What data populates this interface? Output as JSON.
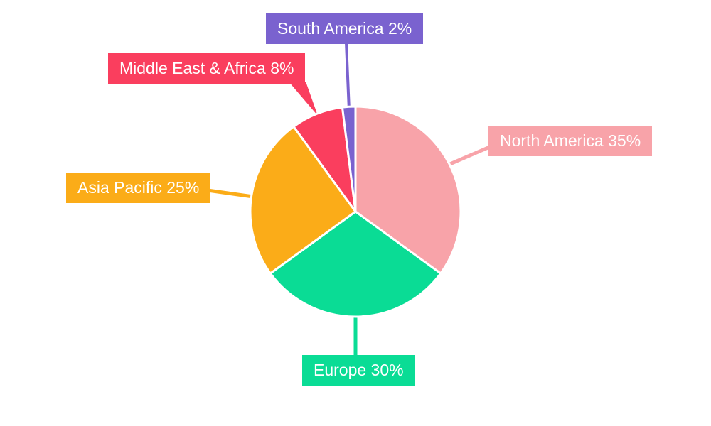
{
  "chart_data": {
    "type": "pie",
    "title": "",
    "legend": "none",
    "background": "#FFFFFF",
    "direction": "clockwise",
    "start_angle_deg": 0,
    "categories": [
      "North America",
      "Europe",
      "Asia Pacific",
      "Middle East & Africa",
      "South America"
    ],
    "values": [
      35,
      30,
      25,
      8,
      2
    ],
    "slices": [
      {
        "name": "North America",
        "pct": 35,
        "label": "North America 35%",
        "color": "#F8A3A9"
      },
      {
        "name": "Europe",
        "pct": 30,
        "label": "Europe 30%",
        "color": "#0ADC95"
      },
      {
        "name": "Asia Pacific",
        "pct": 25,
        "label": "Asia Pacific 25%",
        "color": "#FBAC18"
      },
      {
        "name": "Middle East & Africa",
        "pct": 8,
        "label": "Middle East & Africa 8%",
        "color": "#FA3E5E"
      },
      {
        "name": "South America",
        "pct": 2,
        "label": "South America 2%",
        "color": "#7A62CF"
      }
    ]
  }
}
